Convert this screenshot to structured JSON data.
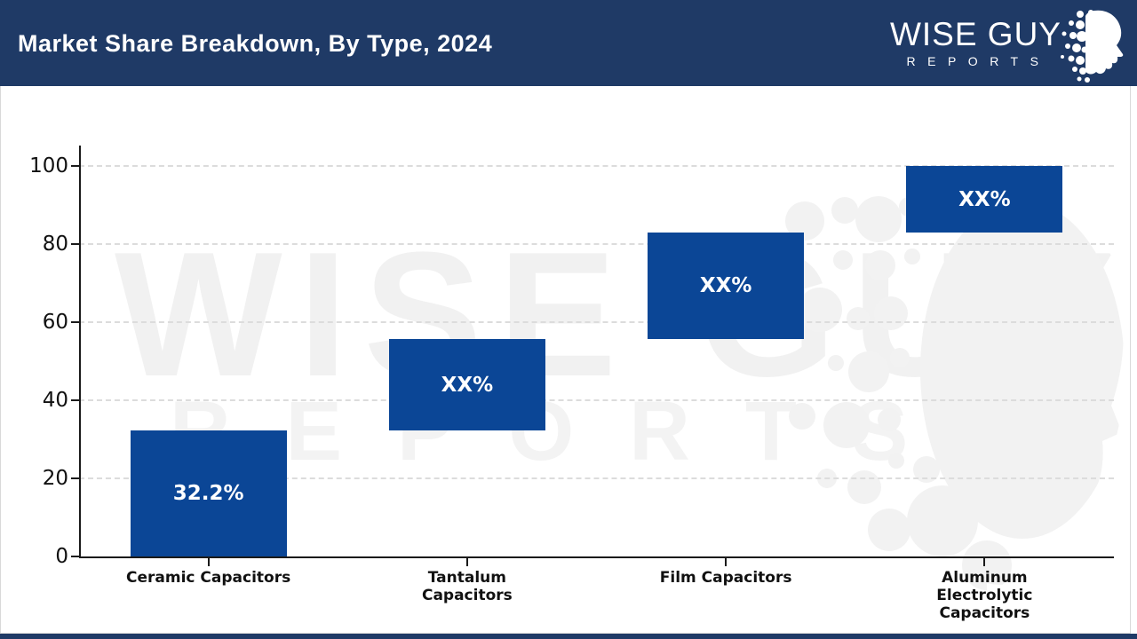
{
  "header": {
    "title": "Market Share Breakdown, By Type, 2024",
    "logo": {
      "line1": "WISE GUY",
      "line2": "REPORTS"
    }
  },
  "watermark": {
    "line1": "WISE GUY",
    "line2": "REPORTS"
  },
  "colors": {
    "header_bg": "#1f3a66",
    "bar_blue": "#0b4696",
    "gridline": "#dcdcdc",
    "axis": "#1a1a1a",
    "bar_label_text": "#ffffff",
    "border_gray": "#d9d9d9",
    "watermark_gray": "#f1f1f1"
  },
  "chart_data": {
    "type": "bar",
    "subtype": "waterfall-stacked",
    "title": "Market Share Breakdown, By Type, 2024",
    "xlabel": "",
    "ylabel": "",
    "ylim": [
      0,
      100
    ],
    "yticks": [
      0,
      20,
      40,
      60,
      80,
      100
    ],
    "grid": "horizontal-dashed",
    "legend": "none",
    "categories": [
      "Ceramic Capacitors",
      "Tantalum\nCapacitors",
      "Film Capacitors",
      "Aluminum\nElectrolytic\nCapacitors"
    ],
    "segments": [
      {
        "category": "Ceramic Capacitors",
        "start": 0,
        "end": 32.2,
        "label": "32.2%"
      },
      {
        "category": "Tantalum\nCapacitors",
        "start": 32.2,
        "end": 55.6,
        "label": "XX%"
      },
      {
        "category": "Film Capacitors",
        "start": 55.6,
        "end": 82.9,
        "label": "XX%"
      },
      {
        "category": "Aluminum\nElectrolytic\nCapacitors",
        "start": 82.9,
        "end": 100,
        "label": "XX%"
      }
    ]
  }
}
